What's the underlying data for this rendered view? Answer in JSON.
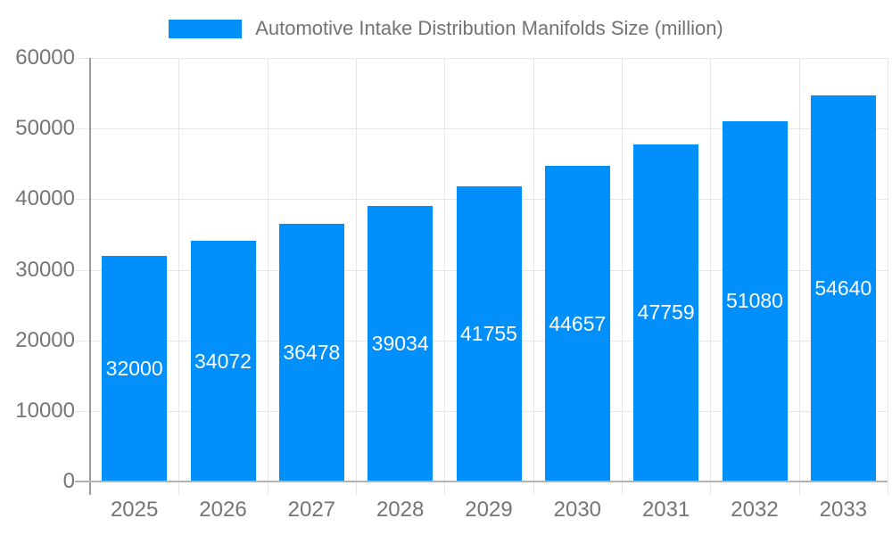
{
  "legend": {
    "label": "Automotive Intake Distribution Manifolds Size (million)"
  },
  "chart_data": {
    "type": "bar",
    "title": "Automotive Intake Distribution Manifolds Size (million)",
    "categories": [
      "2025",
      "2026",
      "2027",
      "2028",
      "2029",
      "2030",
      "2031",
      "2032",
      "2033"
    ],
    "series": [
      {
        "name": "Automotive Intake Distribution Manifolds Size (million)",
        "values": [
          32000,
          34072,
          36478,
          39034,
          41755,
          44657,
          47759,
          51080,
          54640
        ]
      }
    ],
    "xlabel": "",
    "ylabel": "",
    "ylim": [
      0,
      60000
    ],
    "yticks": [
      0,
      10000,
      20000,
      30000,
      40000,
      50000,
      60000
    ],
    "grid": true,
    "legend_position": "top",
    "value_label_position": "inside-center",
    "colors": {
      "bar": "#008FFB",
      "axis_text": "#757575",
      "legend_text": "#737373",
      "gridline": "#e6e6e6",
      "baseline": "#b3b3b3",
      "axis_line": "#999999",
      "value_label_text": "#ffffff",
      "background": "#ffffff"
    }
  }
}
